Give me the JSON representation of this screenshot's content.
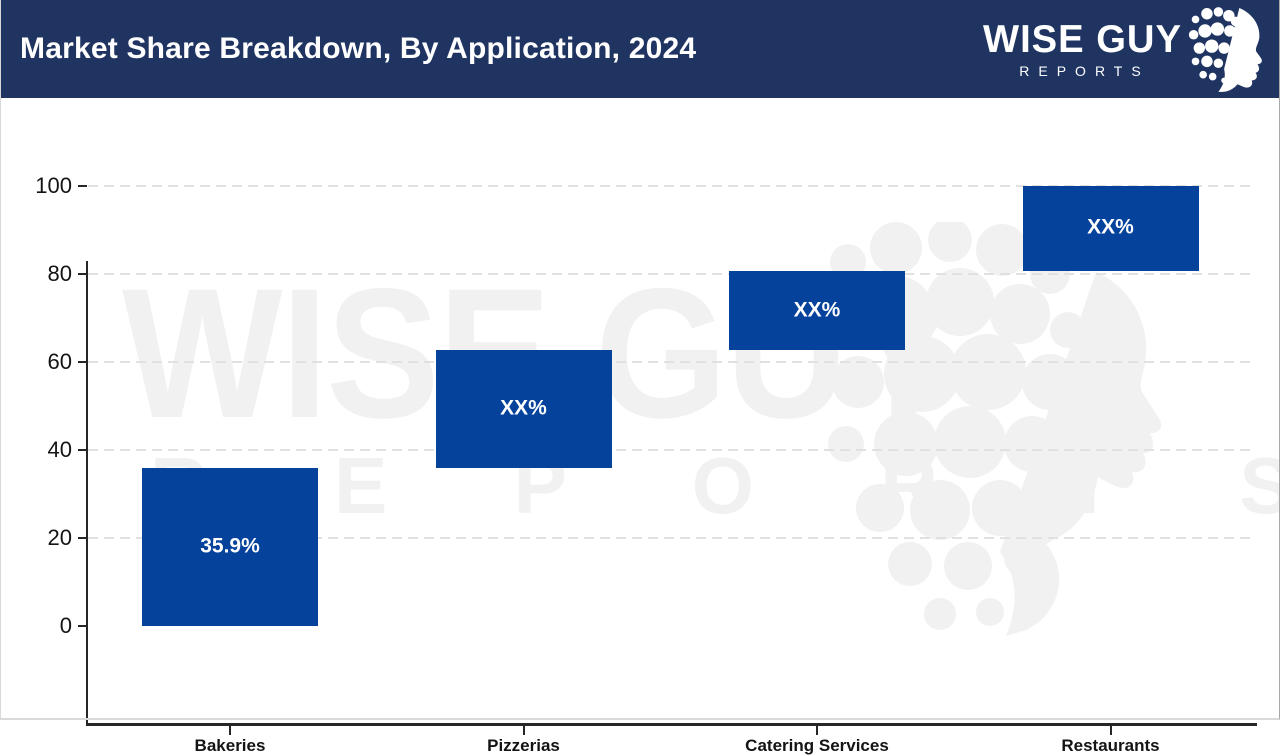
{
  "header": {
    "title": "Market Share Breakdown, By Application, 2024",
    "logo_line1": "WISE GUY",
    "logo_line2": "REPORTS"
  },
  "watermark": {
    "line1": "WISE GUY",
    "line2": "R E P O R T S"
  },
  "colors": {
    "header_navy": "#203462",
    "bar_blue": "#04429c",
    "watermark_gray": "#f1f1f1",
    "gridline_gray": "#e1e1e1",
    "axis_black": "#262626",
    "bar_label_white": "#ffffff"
  },
  "chart_data": {
    "type": "bar",
    "subtype": "waterfall",
    "title": "Market Share Breakdown, By Application, 2024",
    "categories": [
      "Bakeries",
      "Pizzerias",
      "Catering Services",
      "Restaurants"
    ],
    "segments": [
      {
        "category": "Bakeries",
        "start": 0,
        "end": 35.9,
        "label": "35.9%"
      },
      {
        "category": "Pizzerias",
        "start": 35.9,
        "end": 62.7,
        "label": "XX%"
      },
      {
        "category": "Catering Services",
        "start": 62.7,
        "end": 80.7,
        "label": "XX%"
      },
      {
        "category": "Restaurants",
        "start": 80.7,
        "end": 100,
        "label": "XX%"
      }
    ],
    "yticks": [
      0,
      20,
      40,
      60,
      80,
      100
    ],
    "ylim": [
      0,
      107
    ],
    "xlabel": "",
    "ylabel": "",
    "legend": "none",
    "grid": "horizontal-dashed",
    "bar_color": "#04429c",
    "bar_label_color": "#ffffff"
  }
}
